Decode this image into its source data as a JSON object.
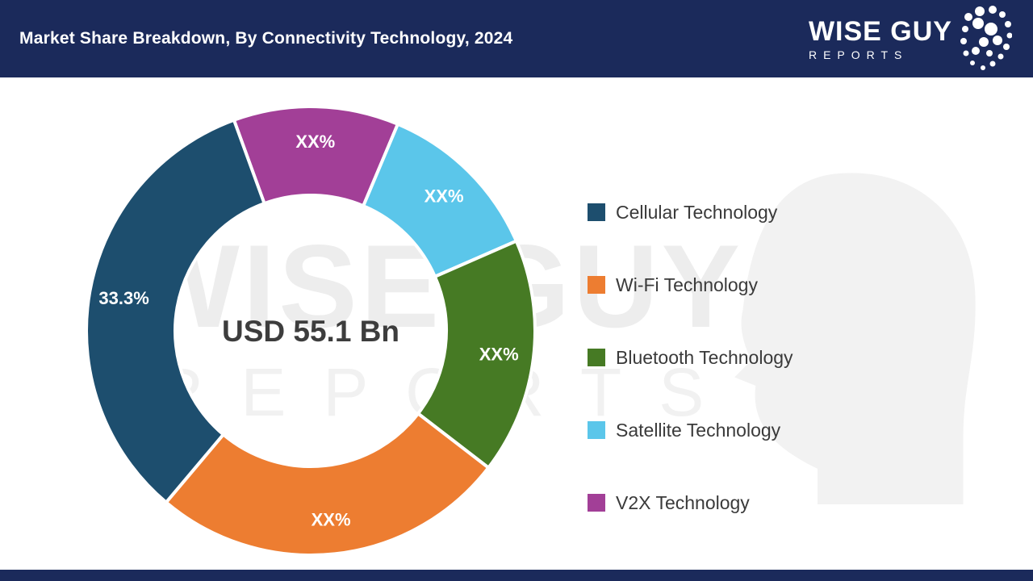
{
  "header": {
    "title": "Market Share Breakdown, By Connectivity Technology, 2024"
  },
  "logo": {
    "line1": "WISE GUY",
    "line2": "REPORTS"
  },
  "watermark": {
    "line1": "WISE GUY",
    "line2": "REPORTS"
  },
  "colors": {
    "header_bg": "#1b2a5b",
    "footer_bg": "#1b2a5b",
    "cellular": "#1d4e6e",
    "wifi": "#ed7d31",
    "bluetooth": "#467a24",
    "satellite": "#5bc6ea",
    "v2x": "#a23f97"
  },
  "chart_data": {
    "type": "pie",
    "subtype": "donut",
    "title": "Market Share Breakdown, By Connectivity Technology, 2024",
    "center_label": "USD 55.1 Bn",
    "start_angle_deg": 340,
    "legend_position": "right",
    "segments": [
      {
        "name": "V2X Technology",
        "display_label": "XX%",
        "value": 11.9,
        "color": "#a23f97"
      },
      {
        "name": "Satellite Technology",
        "display_label": "XX%",
        "value": 12.1,
        "color": "#5bc6ea"
      },
      {
        "name": "Bluetooth Technology",
        "display_label": "XX%",
        "value": 17.0,
        "color": "#467a24"
      },
      {
        "name": "Wi-Fi Technology",
        "display_label": "XX%",
        "value": 25.7,
        "color": "#ed7d31"
      },
      {
        "name": "Cellular Technology",
        "display_label": "33.3%",
        "value": 33.3,
        "color": "#1d4e6e"
      }
    ],
    "legend": [
      {
        "label": "Cellular Technology",
        "color": "#1d4e6e"
      },
      {
        "label": "Wi-Fi Technology",
        "color": "#ed7d31"
      },
      {
        "label": "Bluetooth Technology",
        "color": "#467a24"
      },
      {
        "label": "Satellite Technology",
        "color": "#5bc6ea"
      },
      {
        "label": "V2X Technology",
        "color": "#a23f97"
      }
    ]
  }
}
